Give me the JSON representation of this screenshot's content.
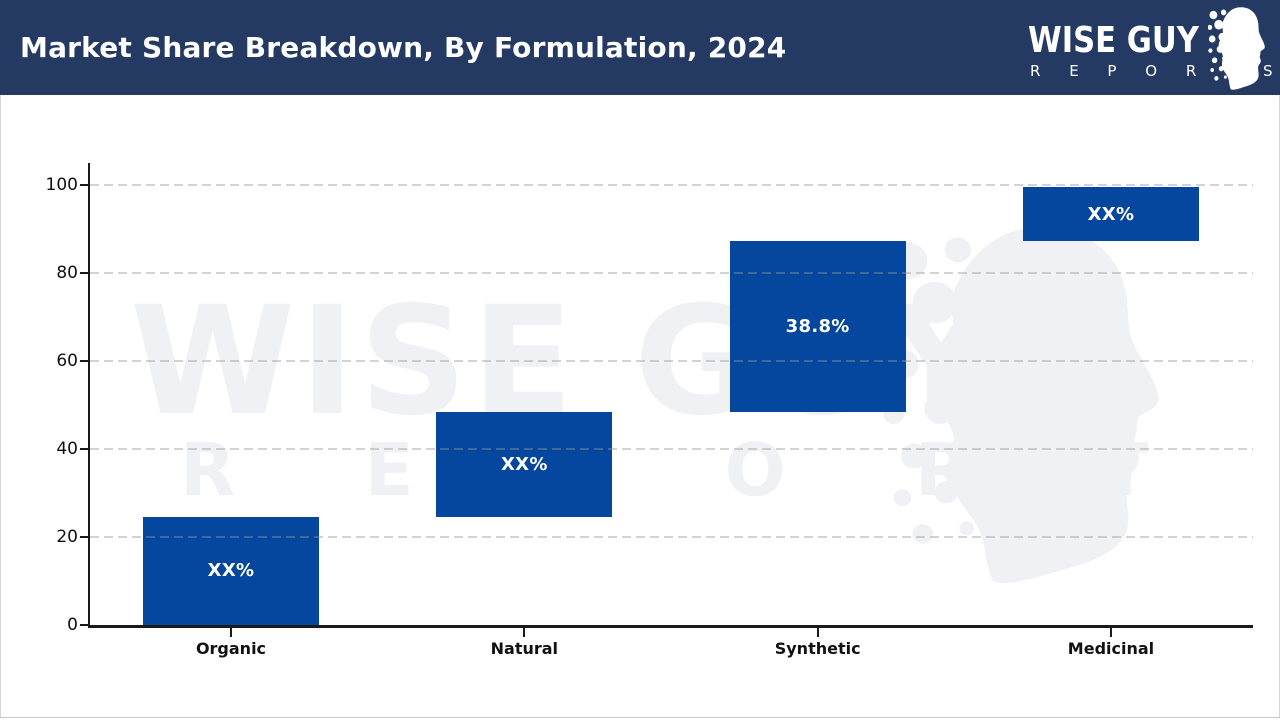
{
  "header": {
    "title": "Market Share Breakdown, By Formulation, 2024",
    "bg_color": "#243a63",
    "logo": {
      "line1": "WISE GUY",
      "line2": "R E P O R T S"
    }
  },
  "watermark": {
    "line1": "WISE GUY",
    "line2": "R E P O R T S"
  },
  "chart_data": {
    "type": "bar",
    "subtype": "floating-waterfall",
    "title": "Market Share Breakdown, By Formulation, 2024",
    "categories": [
      "Organic",
      "Natural",
      "Synthetic",
      "Medicinal"
    ],
    "segments": [
      {
        "category": "Organic",
        "start": 0,
        "end": 24.6,
        "label": "XX%"
      },
      {
        "category": "Natural",
        "start": 24.6,
        "end": 48.4,
        "label": "XX%"
      },
      {
        "category": "Synthetic",
        "start": 48.4,
        "end": 87.2,
        "label": "38.8%"
      },
      {
        "category": "Medicinal",
        "start": 87.2,
        "end": 99.5,
        "label": "XX%"
      }
    ],
    "xlabel": "",
    "ylabel": "",
    "ylim": [
      0,
      105
    ],
    "yticks": [
      0,
      20,
      40,
      60,
      80,
      100
    ],
    "grid": "horizontal-dashed-overlay",
    "legend": "none",
    "bar_color": "#05479e",
    "bar_label_color": "#ffffff",
    "axis_color": "#1a1a1a"
  }
}
